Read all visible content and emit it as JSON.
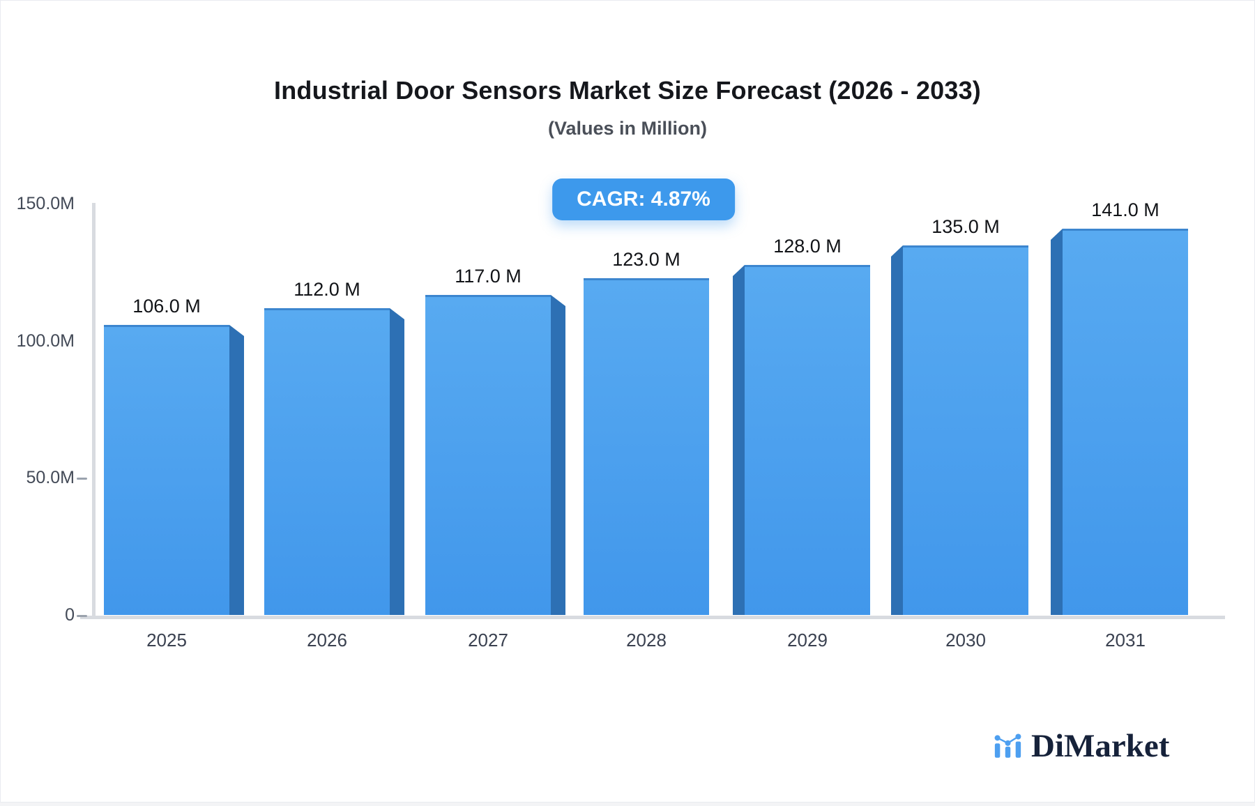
{
  "title": "Industrial Door Sensors Market Size Forecast (2026 - 2033)",
  "subtitle": "(Values in Million)",
  "badge": {
    "label": "CAGR: 4.87%"
  },
  "logo": {
    "text": "DiMarket",
    "icon": "mini-bar-chart-with-dots"
  },
  "colors": {
    "bar_face_top": "#58aaf1",
    "bar_face_bottom": "#4197eb",
    "bar_side": "#2d70b4",
    "bar_top_edge": "#3c86cf",
    "badge_bg": "#3d99ec",
    "axis_line": "#d8dbe0",
    "logo_blue": "#4d9ff0",
    "logo_text": "#16223a"
  },
  "chart_data": {
    "type": "bar",
    "title": "Industrial Door Sensors Market Size Forecast (2026 - 2033)",
    "subtitle": "(Values in Million)",
    "annotation": "CAGR: 4.87%",
    "unit": "Million",
    "categories": [
      "2025",
      "2026",
      "2027",
      "2028",
      "2029",
      "2030",
      "2031"
    ],
    "values": [
      106.0,
      112.0,
      117.0,
      123.0,
      128.0,
      135.0,
      141.0
    ],
    "value_labels": [
      "106.0 M",
      "112.0 M",
      "117.0 M",
      "123.0 M",
      "128.0 M",
      "135.0 M",
      "141.0 M"
    ],
    "y_ticks": [
      {
        "label": "150.0M",
        "value": 150
      },
      {
        "label": "100.0M",
        "value": 100
      },
      {
        "label": "50.0M",
        "value": 50
      },
      {
        "label": "0",
        "value": 0
      }
    ],
    "ylim": [
      0,
      150
    ],
    "grid": false,
    "legend": false
  }
}
